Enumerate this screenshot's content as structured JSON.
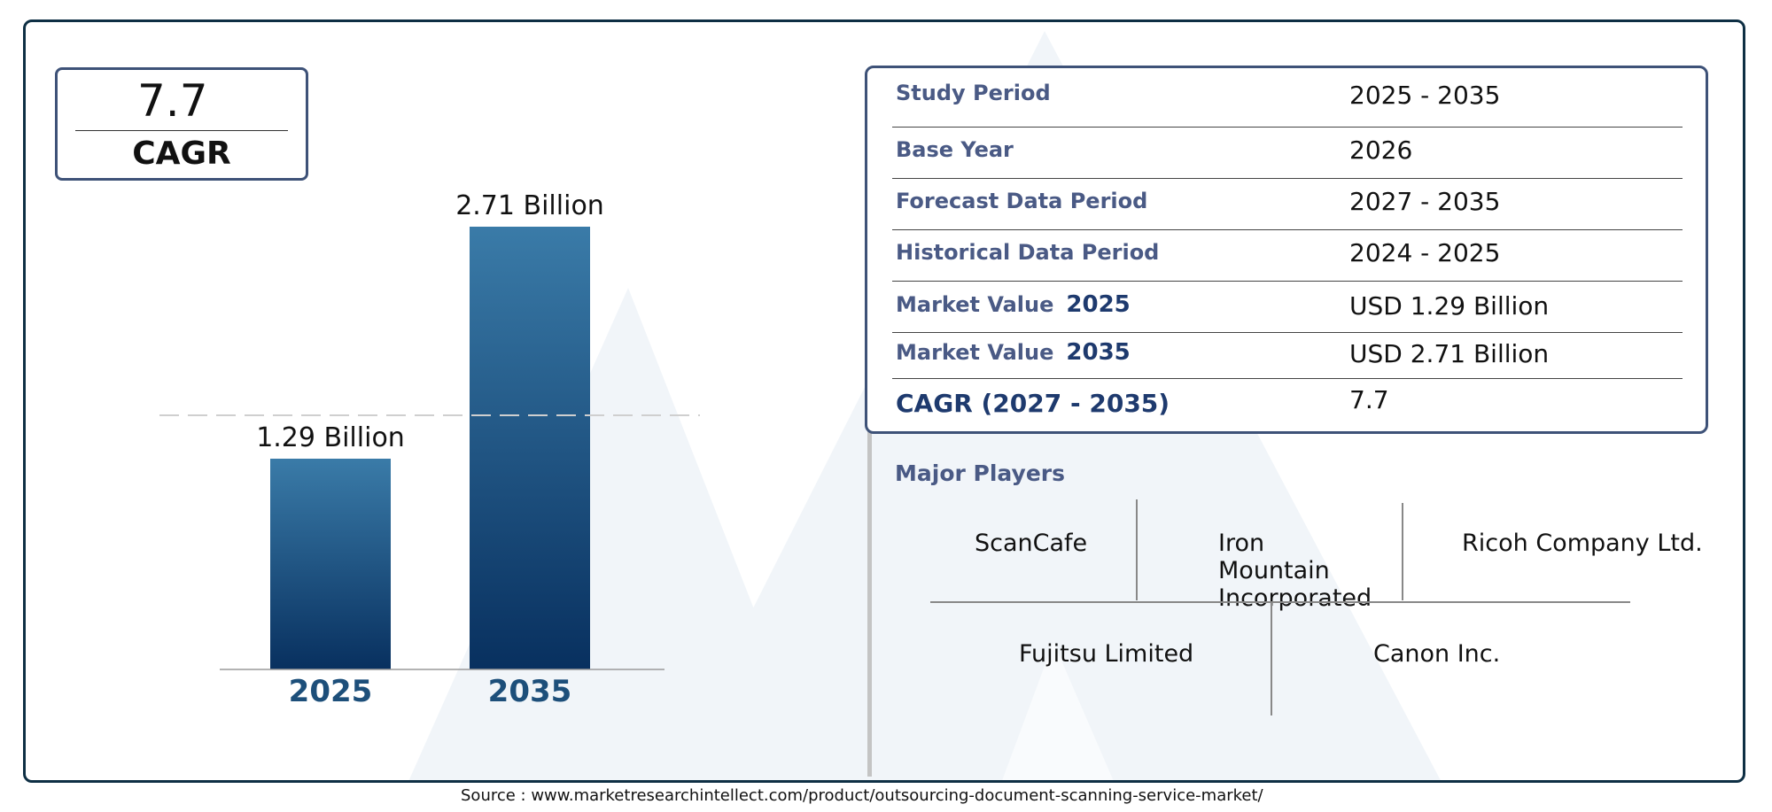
{
  "cagr_box": {
    "value": "7.7",
    "label": "CAGR"
  },
  "chart_data": {
    "type": "bar",
    "categories": [
      "2025",
      "2035"
    ],
    "values": [
      1.29,
      2.71
    ],
    "value_labels": [
      "1.29 Billion",
      "2.71 Billion"
    ],
    "colors": {
      "bar_top": "#3a7ba8",
      "bar_bottom": "#08305f",
      "category_text": "#1d4f7a"
    }
  },
  "summary_table": {
    "rows": [
      {
        "label": "Study Period",
        "value": "2025 - 2035"
      },
      {
        "label": "Base Year",
        "value": "2026"
      },
      {
        "label": "Forecast Data Period",
        "value": "2027 - 2035"
      },
      {
        "label": "Historical Data Period",
        "value": "2024 - 2025"
      },
      {
        "label": "Market Value",
        "label_year": "2025",
        "value": "USD 1.29 Billion"
      },
      {
        "label": "Market Value",
        "label_year": "2035",
        "value": "USD 2.71 Billion"
      },
      {
        "label": "CAGR (2027 - 2035)",
        "value": "7.7"
      }
    ]
  },
  "major_players": {
    "title": "Major Players",
    "players": [
      "ScanCafe",
      "Iron Mountain Incorporated",
      "Ricoh Company Ltd.",
      "Fujitsu Limited",
      "Canon Inc."
    ]
  },
  "source": "Source : www.marketresearchintellect.com/product/outsourcing-document-scanning-service-market/",
  "colors": {
    "frame": "#0e2f44",
    "label": "#4a5a85",
    "watermark": "#eef3f8"
  }
}
